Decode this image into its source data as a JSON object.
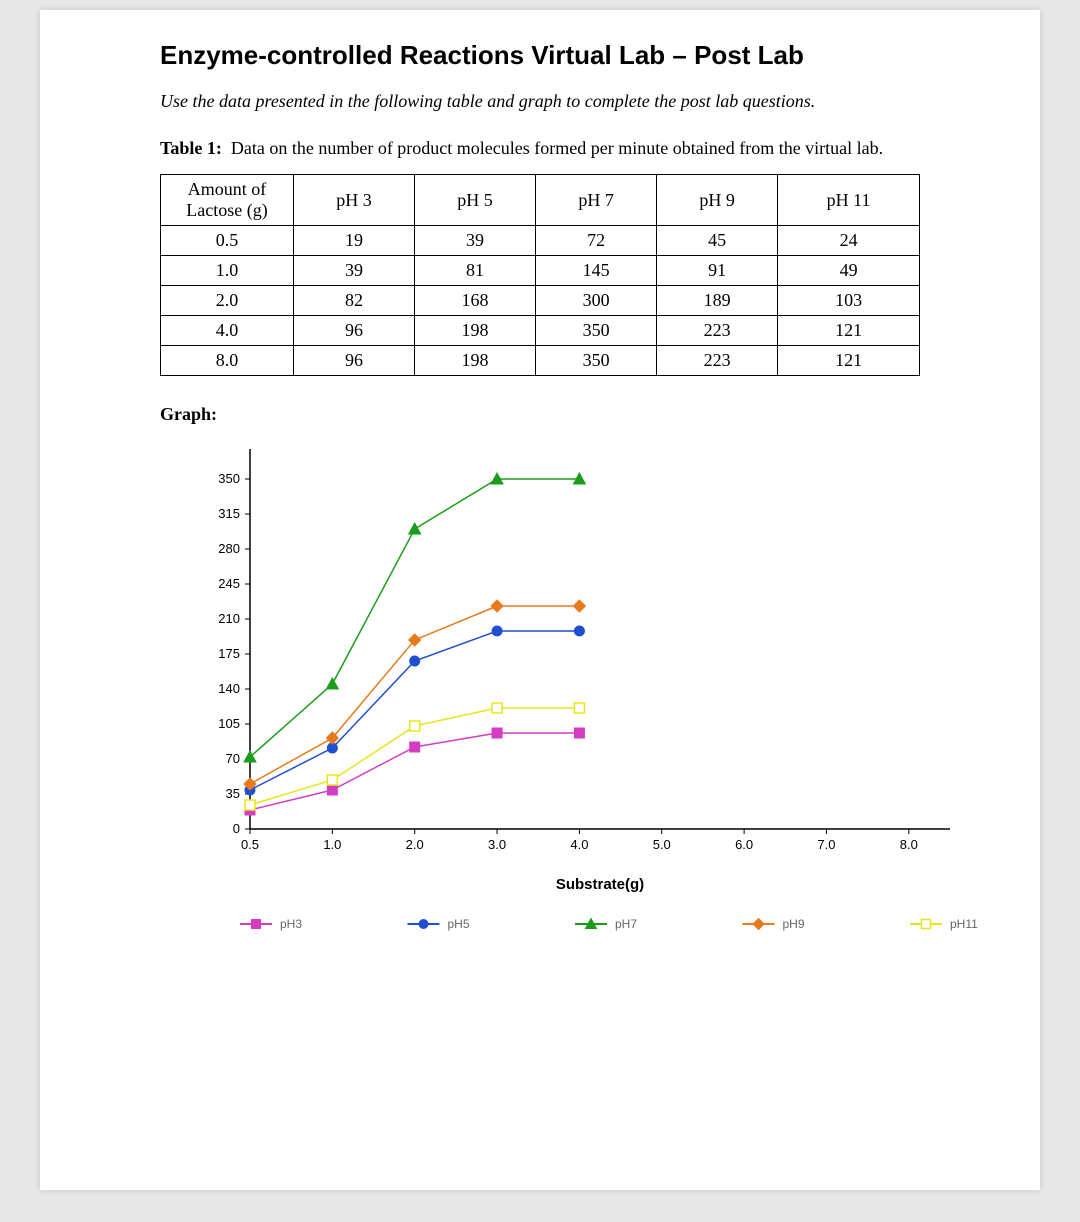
{
  "title": "Enzyme-controlled Reactions Virtual Lab – Post Lab",
  "instruction": "Use the data presented in the following table and graph to complete the post lab questions.",
  "table_caption_prefix": "Table 1:",
  "table_caption_rest": "Data on the number of product molecules formed per minute obtained from the virtual lab.",
  "graph_label": "Graph:",
  "table": {
    "columns": [
      "Amount of Lactose (g)",
      "pH 3",
      "pH 5",
      "pH 7",
      "pH 9",
      "pH 11"
    ],
    "rows": [
      [
        "0.5",
        "19",
        "39",
        "72",
        "45",
        "24"
      ],
      [
        "1.0",
        "39",
        "81",
        "145",
        "91",
        "49"
      ],
      [
        "2.0",
        "82",
        "168",
        "300",
        "189",
        "103"
      ],
      [
        "4.0",
        "96",
        "198",
        "350",
        "223",
        "121"
      ],
      [
        "8.0",
        "96",
        "198",
        "350",
        "223",
        "121"
      ]
    ]
  },
  "chart": {
    "type": "line",
    "xlabel": "Substrate(g)",
    "xlabel_fontsize": 15,
    "xtick_labels": [
      "0.5",
      "1.0",
      "2.0",
      "3.0",
      "4.0",
      "5.0",
      "6.0",
      "7.0",
      "8.0"
    ],
    "xtick_positions": [
      0,
      1,
      2,
      3,
      4,
      5,
      6,
      7,
      8
    ],
    "xlim": [
      0,
      8.5
    ],
    "ytick_labels": [
      "0",
      "35",
      "70",
      "105",
      "140",
      "175",
      "210",
      "245",
      "280",
      "315",
      "350"
    ],
    "ytick_values": [
      0,
      35,
      70,
      105,
      140,
      175,
      210,
      245,
      280,
      315,
      350
    ],
    "ylim": [
      0,
      370
    ],
    "plot_x_positions": [
      0,
      1,
      2,
      3,
      4
    ],
    "tick_fontsize": 13,
    "axis_color": "#000000",
    "background_color": "#ffffff",
    "line_width": 1.5,
    "marker_size": 5,
    "series": [
      {
        "name": "pH3",
        "legend": "pH3",
        "color": "#d63cc1",
        "marker": "square-filled",
        "values": [
          19,
          39,
          82,
          96,
          96
        ]
      },
      {
        "name": "pH5",
        "legend": "pH5",
        "color": "#1f4fd1",
        "marker": "circle-filled",
        "values": [
          39,
          81,
          168,
          198,
          198
        ]
      },
      {
        "name": "pH7",
        "legend": "pH7",
        "color": "#1a9d1a",
        "marker": "triangle-filled",
        "values": [
          72,
          145,
          300,
          350,
          350
        ]
      },
      {
        "name": "pH9",
        "legend": "pH9",
        "color": "#e87a1c",
        "marker": "diamond-filled",
        "values": [
          45,
          91,
          189,
          223,
          223
        ]
      },
      {
        "name": "pH11",
        "legend": "pH11",
        "color": "#e6e61a",
        "marker": "square-open",
        "values": [
          24,
          49,
          103,
          121,
          121
        ]
      }
    ],
    "legend": {
      "items": [
        {
          "label": "pH3",
          "color": "#d63cc1",
          "marker": "square-filled"
        },
        {
          "label": "pH5",
          "color": "#1f4fd1",
          "marker": "circle-filled"
        },
        {
          "label": "pH7",
          "color": "#1a9d1a",
          "marker": "triangle-filled"
        },
        {
          "label": "pH9",
          "color": "#e87a1c",
          "marker": "diamond-filled"
        },
        {
          "label": "pH11",
          "color": "#e6e61a",
          "marker": "square-open"
        }
      ],
      "fontsize": 12,
      "text_color": "#666666"
    }
  }
}
